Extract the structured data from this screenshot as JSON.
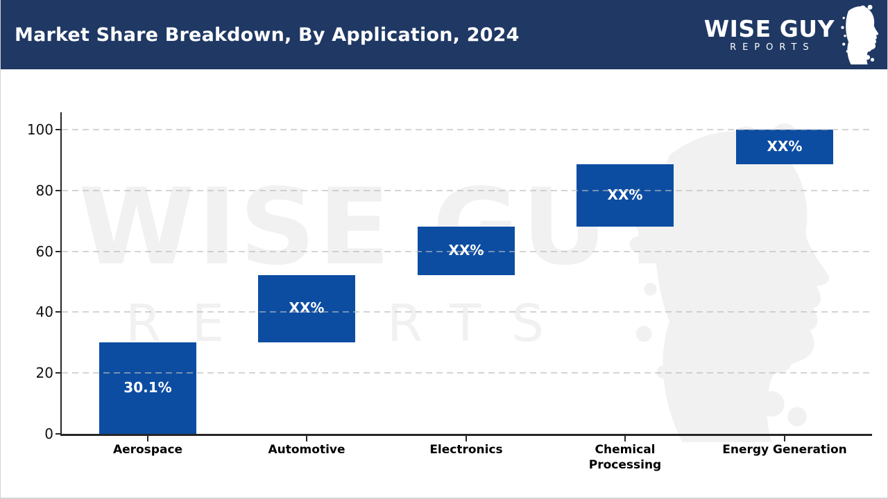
{
  "header": {
    "title": "Market Share Breakdown, By Application, 2024",
    "logo": {
      "line1": "WISE GUY",
      "line2": "REPORTS"
    }
  },
  "watermark": {
    "line1": "WISE GUY",
    "line2": "REPORTS"
  },
  "chart_data": {
    "type": "bar",
    "subtype": "waterfall",
    "title": "Market Share Breakdown, By Application, 2024",
    "categories": [
      "Aerospace",
      "Automotive",
      "Electronics",
      "Chemical Processing",
      "Energy Generation"
    ],
    "tick_labels": [
      "Aerospace",
      "Automotive",
      "Electronics",
      "Chemical\nProcessing",
      "Energy Generation"
    ],
    "segments": [
      {
        "category": "Aerospace",
        "start": 0,
        "end": 30.1,
        "value_label": "30.1%"
      },
      {
        "category": "Automotive",
        "start": 30.1,
        "end": 52.2,
        "value_label": "XX%"
      },
      {
        "category": "Electronics",
        "start": 52.2,
        "end": 68.1,
        "value_label": "XX%"
      },
      {
        "category": "Chemical Processing",
        "start": 68.1,
        "end": 88.5,
        "value_label": "XX%"
      },
      {
        "category": "Energy Generation",
        "start": 88.5,
        "end": 100,
        "value_label": "XX%"
      }
    ],
    "xlabel": "",
    "ylabel": "",
    "ylim": [
      0,
      100
    ],
    "yticks": [
      0,
      20,
      40,
      60,
      80,
      100
    ],
    "grid": "horizontal-dashed",
    "legend": "none",
    "bar_color": "#0C4DA2",
    "value_label_color": "#FFFFFF"
  },
  "colors": {
    "header_bg": "#1F3864",
    "header_text": "#FFFFFF",
    "bar": "#0C4DA2",
    "grid": "#D6D6D6",
    "axis": "#262626",
    "tick_text": "#111111",
    "watermark": "#F1F1F1",
    "page_border": "#D4D4D4"
  }
}
